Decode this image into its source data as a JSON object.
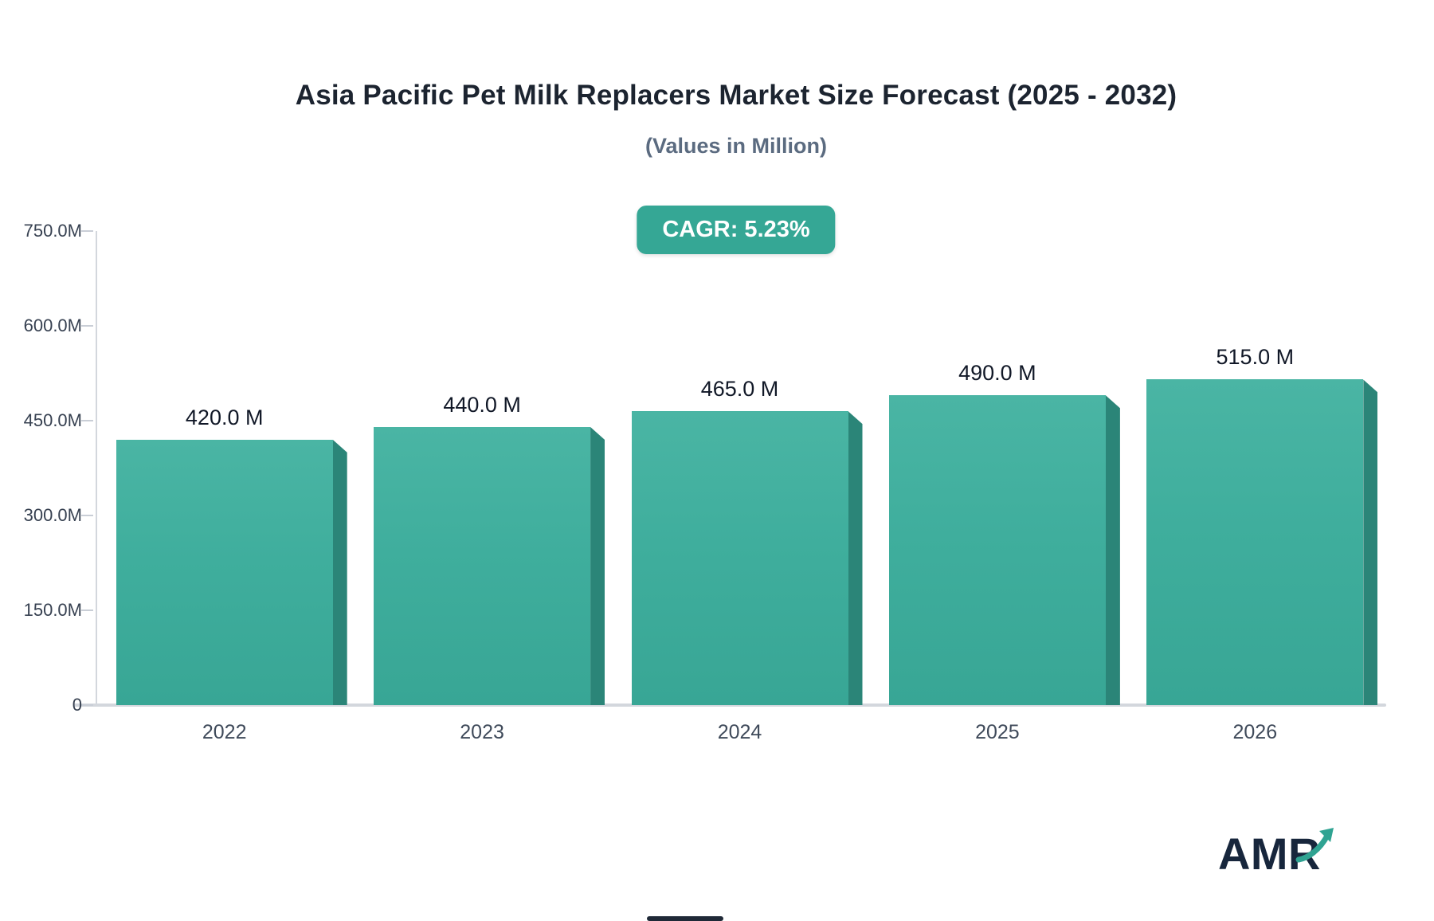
{
  "title": "Asia Pacific Pet Milk Replacers Market Size Forecast (2025 - 2032)",
  "subtitle": "(Values in Million)",
  "cagr_badge": "CAGR: 5.23%",
  "logo": {
    "text": "AMR"
  },
  "colors": {
    "accent_teal": "#35a795",
    "bar_face": "#3fae9d",
    "bar_side": "#2b8578",
    "title_text": "#1c2430",
    "subtitle_text": "#5b6b80",
    "axis_line": "#d3d7dd"
  },
  "chart_data": {
    "type": "bar",
    "title": "Asia Pacific Pet Milk Replacers Market Size Forecast (2025 - 2032)",
    "subtitle": "(Values in Million)",
    "annotation": "CAGR: 5.23%",
    "categories": [
      "2022",
      "2023",
      "2024",
      "2025",
      "2026"
    ],
    "values": [
      420.0,
      440.0,
      465.0,
      490.0,
      515.0
    ],
    "value_labels": [
      "420.0 M",
      "440.0 M",
      "465.0 M",
      "490.0 M",
      "515.0 M"
    ],
    "unit": "Million",
    "xlabel": "",
    "ylabel": "",
    "ylim": [
      0,
      750
    ],
    "yticks": [
      0,
      150,
      300,
      450,
      600,
      750
    ],
    "ytick_labels": [
      "0",
      "150.0M",
      "300.0M",
      "450.0M",
      "600.0M",
      "750.0M"
    ],
    "grid": false,
    "legend": false
  }
}
